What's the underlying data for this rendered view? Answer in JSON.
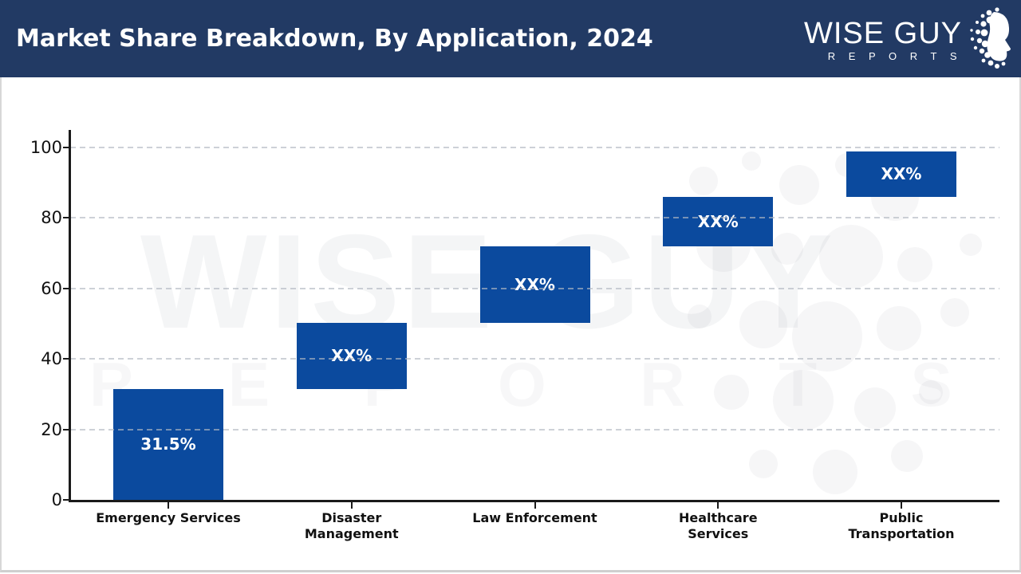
{
  "header": {
    "title": "Market Share Breakdown, By Application, 2024",
    "bg_color": "#223a64",
    "logo": {
      "line1": "WISE GUY",
      "line2": "R E P O R T S"
    }
  },
  "watermark": {
    "line1": "WISE GUY",
    "line2": "R E P O R T S"
  },
  "chart_data": {
    "type": "bar",
    "subtype": "waterfall",
    "title": "Market Share Breakdown, By Application, 2024",
    "xlabel": "",
    "ylabel": "",
    "categories": [
      "Emergency Services",
      "Disaster\nManagement",
      "Law Enforcement",
      "Healthcare\nServices",
      "Public\nTransportation"
    ],
    "segments": [
      {
        "category": "Emergency Services",
        "label": "31.5%",
        "start": 0,
        "end": 31.5
      },
      {
        "category": "Disaster Management",
        "label": "XX%",
        "start": 31.5,
        "end": 50.3
      },
      {
        "category": "Law Enforcement",
        "label": "XX%",
        "start": 50.3,
        "end": 71.9
      },
      {
        "category": "Healthcare Services",
        "label": "XX%",
        "start": 71.9,
        "end": 86.1
      },
      {
        "category": "Public Transportation",
        "label": "XX%",
        "start": 86.1,
        "end": 99.0
      }
    ],
    "ylim": [
      0,
      105
    ],
    "yticks": [
      0,
      20,
      40,
      60,
      80,
      100
    ],
    "grid": "horizontal-dashed",
    "legend": "none",
    "bar_color": "#0b4a9e",
    "bar_label_color": "#ffffff",
    "grid_color": "#d9d9d9",
    "axis_color": "#1a1a1a"
  }
}
